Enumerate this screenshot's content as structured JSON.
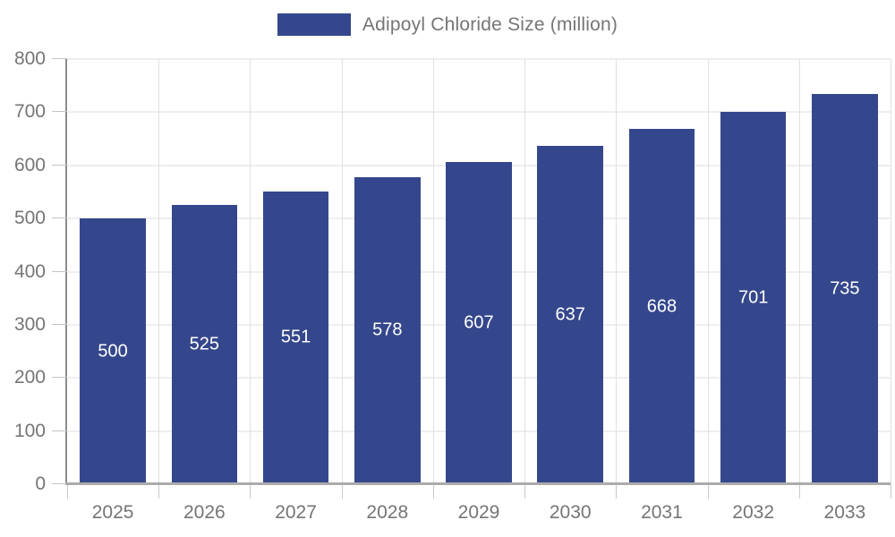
{
  "chart_data": {
    "type": "bar",
    "title": "Adipoyl Chloride Size (million)",
    "legend_position": "top",
    "categories": [
      "2025",
      "2026",
      "2027",
      "2028",
      "2029",
      "2030",
      "2031",
      "2032",
      "2033"
    ],
    "values": [
      500,
      525,
      551,
      578,
      607,
      637,
      668,
      701,
      735
    ],
    "ylim": [
      0,
      800
    ],
    "ytick_step": 100,
    "grid": true,
    "bar_width_fraction": 0.72,
    "colors": {
      "bar": "#35478c",
      "bar_label_text": "#ffffff",
      "axis_text": "#757575",
      "gridline": "#dcdcdc",
      "axis_line": "#8c8c8c",
      "baseline": "#ababab"
    }
  }
}
